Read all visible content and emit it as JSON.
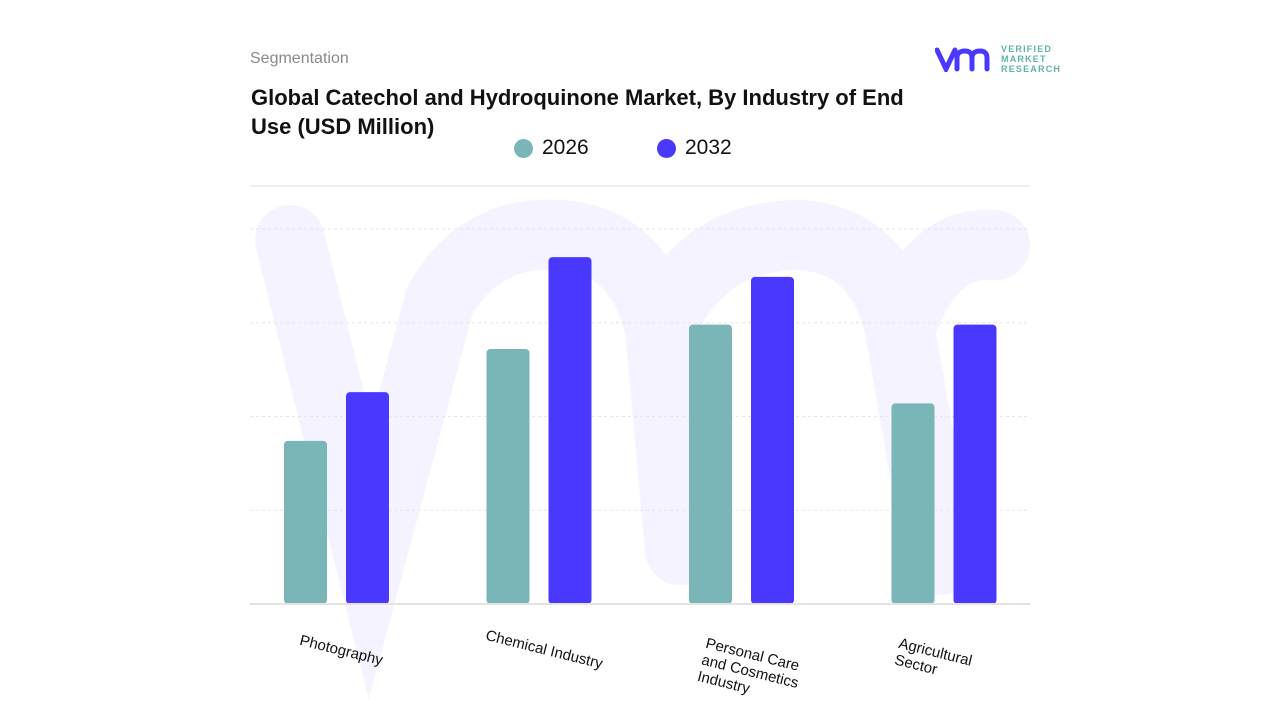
{
  "header": {
    "section": "Segmentation",
    "title": "Global Catechol and Hydroquinone Market, By Industry of End Use (USD Million)"
  },
  "logo": {
    "lines": [
      "VERIFIED",
      "MARKET",
      "RESEARCH"
    ],
    "mark": "vmr"
  },
  "chart_data": {
    "type": "bar",
    "title": "Global Catechol and Hydroquinone Market, By Industry of End Use (USD Million)",
    "categories": [
      "Photography",
      "Chemical Industry",
      "Personal Care and Cosmetics Industry",
      "Agricultural Sector"
    ],
    "series": [
      {
        "name": "2026",
        "color": "#7ab5b7",
        "values": [
          1.74,
          2.72,
          2.98,
          2.14
        ]
      },
      {
        "name": "2032",
        "color": "#4b38ff",
        "values": [
          2.26,
          3.7,
          3.49,
          2.98
        ]
      }
    ],
    "xlabel": "",
    "ylabel": "",
    "ylim": [
      0,
      4.45
    ],
    "y_ticks_shown": false,
    "grid": true,
    "legend": "top-center"
  }
}
